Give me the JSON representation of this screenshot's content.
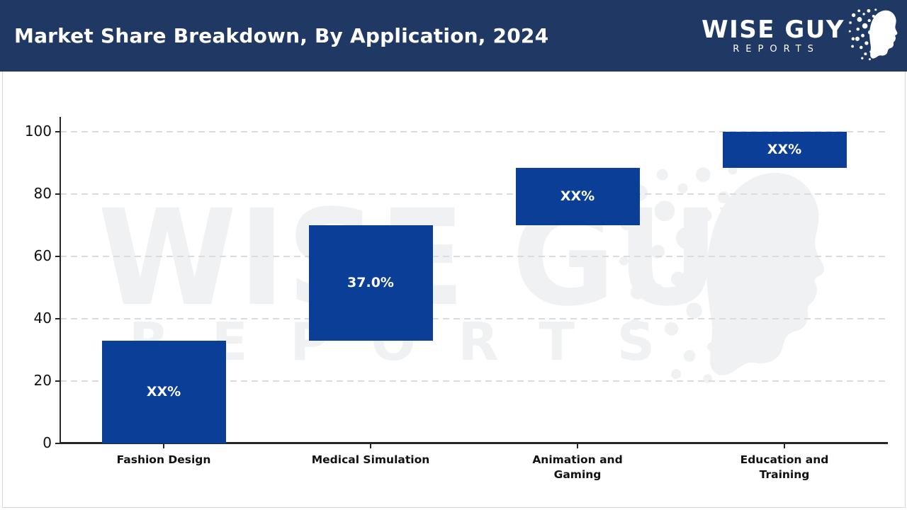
{
  "colors": {
    "header_bg": "#1f3864",
    "bar": "#0b3f97",
    "watermark": "#f0f1f3",
    "grid": "#dcdcdc",
    "axis": "#262626"
  },
  "header": {
    "title": "Market Share Breakdown, By Application, 2024",
    "logo_line1": "WISE GUY",
    "logo_line2": "REPORTS"
  },
  "watermark": {
    "line1": "WISE GUY",
    "line2": "REPORTS"
  },
  "chart_data": {
    "type": "bar",
    "subtype": "floating-waterfall",
    "title": "Market Share Breakdown, By Application, 2024",
    "categories": [
      "Fashion Design",
      "Medical Simulation",
      "Animation and Gaming",
      "Education and Training"
    ],
    "category_label_lines": [
      [
        "Fashion Design"
      ],
      [
        "Medical Simulation"
      ],
      [
        "Animation and",
        "Gaming"
      ],
      [
        "Education and",
        "Training"
      ]
    ],
    "segments": [
      {
        "category": "Fashion Design",
        "start": 0,
        "end": 33,
        "value": 33,
        "label": "XX%"
      },
      {
        "category": "Medical Simulation",
        "start": 33,
        "end": 70,
        "value": 37.0,
        "label": "37.0%"
      },
      {
        "category": "Animation and Gaming",
        "start": 70,
        "end": 88.5,
        "value": 18.5,
        "label": "XX%"
      },
      {
        "category": "Education and Training",
        "start": 88.5,
        "end": 100,
        "value": 11.5,
        "label": "XX%"
      }
    ],
    "ylim": [
      0,
      100
    ],
    "yticks": [
      0,
      20,
      40,
      60,
      80,
      100
    ],
    "xlabel": "",
    "ylabel": "",
    "grid": "horizontal-dashed",
    "legend": "none"
  }
}
